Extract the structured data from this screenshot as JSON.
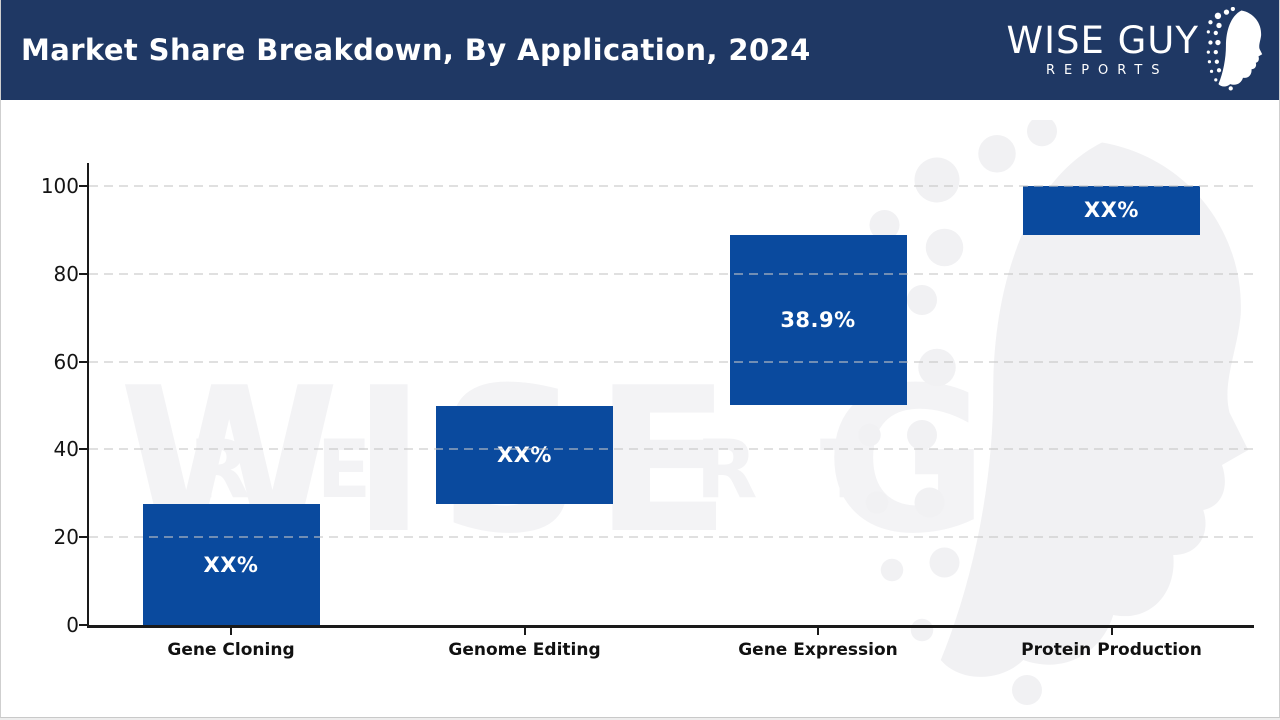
{
  "header": {
    "title": "Market Share Breakdown, By Application, 2024",
    "logo": {
      "line1": "WISE GUY",
      "line2": "REPORTS"
    }
  },
  "watermark": {
    "line1": "WISE GU",
    "line2": "REPORT"
  },
  "chart_data": {
    "type": "bar",
    "subtype": "floating-waterfall",
    "title": "Market Share Breakdown, By Application, 2024",
    "categories": [
      "Gene Cloning",
      "Genome Editing",
      "Gene Expression",
      "Protein Production"
    ],
    "series": [
      {
        "name": "Market share by application",
        "segments": [
          {
            "category": "Gene Cloning",
            "start": 0,
            "end": 27.5,
            "label": "XX%"
          },
          {
            "category": "Genome Editing",
            "start": 27.5,
            "end": 50,
            "label": "XX%"
          },
          {
            "category": "Gene Expression",
            "start": 50,
            "end": 88.9,
            "label": "38.9%"
          },
          {
            "category": "Protein Production",
            "start": 88.9,
            "end": 100,
            "label": "XX%"
          }
        ]
      }
    ],
    "xlabel": "",
    "ylabel": "",
    "y_ticks": [
      0,
      20,
      40,
      60,
      80,
      100
    ],
    "ylim": [
      0,
      105
    ],
    "grid": "horizontal-dashed",
    "legend": null,
    "colors": {
      "bar": "#0a4a9e",
      "bar_label": "#ffffff",
      "axis": "#1a1a1a",
      "grid": "#e3e3e3",
      "header_bg": "#1f3864",
      "watermark": "#f3f3f5"
    }
  }
}
